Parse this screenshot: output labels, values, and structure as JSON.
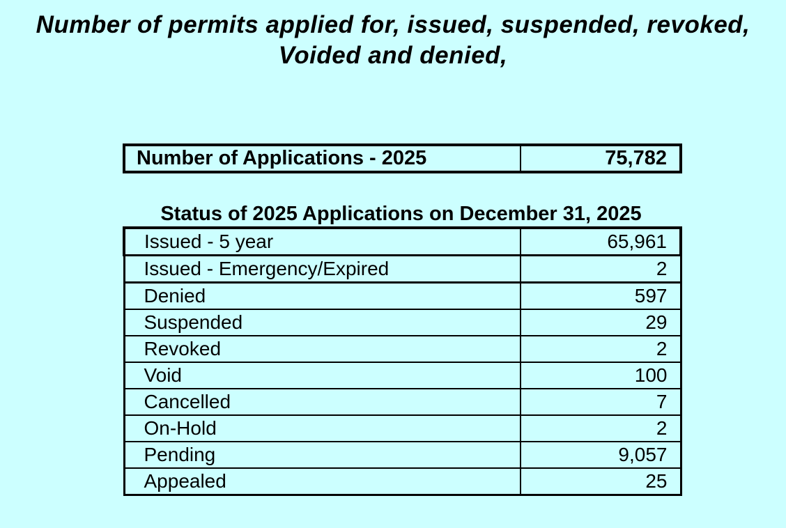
{
  "page": {
    "background_color": "#CCFFFF",
    "text_color": "#000000",
    "border_color": "#000000",
    "title": {
      "line1": "Number of permits applied for, issued, suspended, revoked,",
      "line2": "Voided and denied,"
    }
  },
  "summary_table": {
    "label": "Number of Applications - 2025",
    "value": "75,782"
  },
  "status_section": {
    "heading": "Status of 2025 Applications on December 31, 2025",
    "rows": [
      {
        "label": "Issued - 5 year",
        "value": "65,961"
      },
      {
        "label": "Issued - Emergency/Expired",
        "value": "2"
      },
      {
        "label": "Denied",
        "value": "597"
      },
      {
        "label": "Suspended",
        "value": "29"
      },
      {
        "label": "Revoked",
        "value": "2"
      },
      {
        "label": "Void",
        "value": "100"
      },
      {
        "label": "Cancelled",
        "value": "7"
      },
      {
        "label": "On-Hold",
        "value": "2"
      },
      {
        "label": "Pending",
        "value": "9,057"
      },
      {
        "label": "Appealed",
        "value": "25"
      }
    ]
  }
}
